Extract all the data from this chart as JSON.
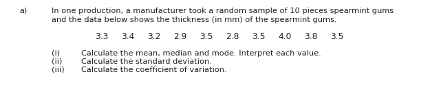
{
  "label_a": "a)",
  "intro_line1": "In one production, a manufacturer took a random sample of 10 pieces spearmint gums",
  "intro_line2": "and the data below shows the thickness (in mm) of the spearmint gums.",
  "data_values": [
    "3.3",
    "3.4",
    "3.2",
    "2.9",
    "3.5",
    "2.8",
    "3.5",
    "4.0",
    "3.8",
    "3.5"
  ],
  "sub_i": "(i)",
  "sub_i_text": "Calculate the mean, median and mode. Interpret each value.",
  "sub_ii": "(ii)",
  "sub_ii_text": "Calculate the standard deviation.",
  "sub_iii": "(iii)",
  "sub_iii_text": "Calculate the coefficient of variation.",
  "bg_color": "#ffffff",
  "text_color": "#231f20",
  "font_size": 8.2,
  "font_size_data": 8.8
}
